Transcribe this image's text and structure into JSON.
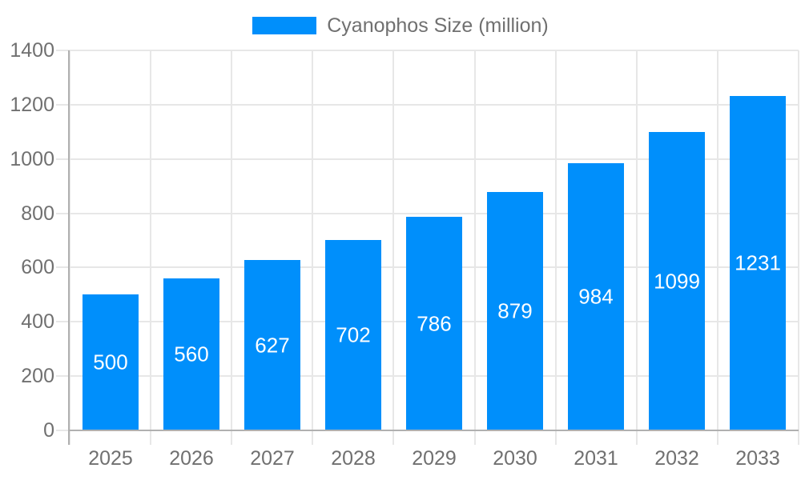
{
  "chart_data": {
    "type": "bar",
    "title": "",
    "categories": [
      "2025",
      "2026",
      "2027",
      "2028",
      "2029",
      "2030",
      "2031",
      "2032",
      "2033"
    ],
    "series": [
      {
        "name": "Cyanophos Size (million)",
        "values": [
          500,
          560,
          627,
          702,
          786,
          879,
          984,
          1099,
          1231
        ]
      }
    ],
    "xlabel": "",
    "ylabel": "",
    "ylim": [
      0,
      1400
    ],
    "yticks": [
      0,
      200,
      400,
      600,
      800,
      1000,
      1200,
      1400
    ],
    "grid": true,
    "legend_position": "top",
    "colors": {
      "bar": "#008FFB",
      "value_label": "#ffffff",
      "axis_text": "#707070",
      "grid_line": "#e7e7e7",
      "axis_line": "#b0b0b0",
      "background": "#ffffff"
    }
  }
}
